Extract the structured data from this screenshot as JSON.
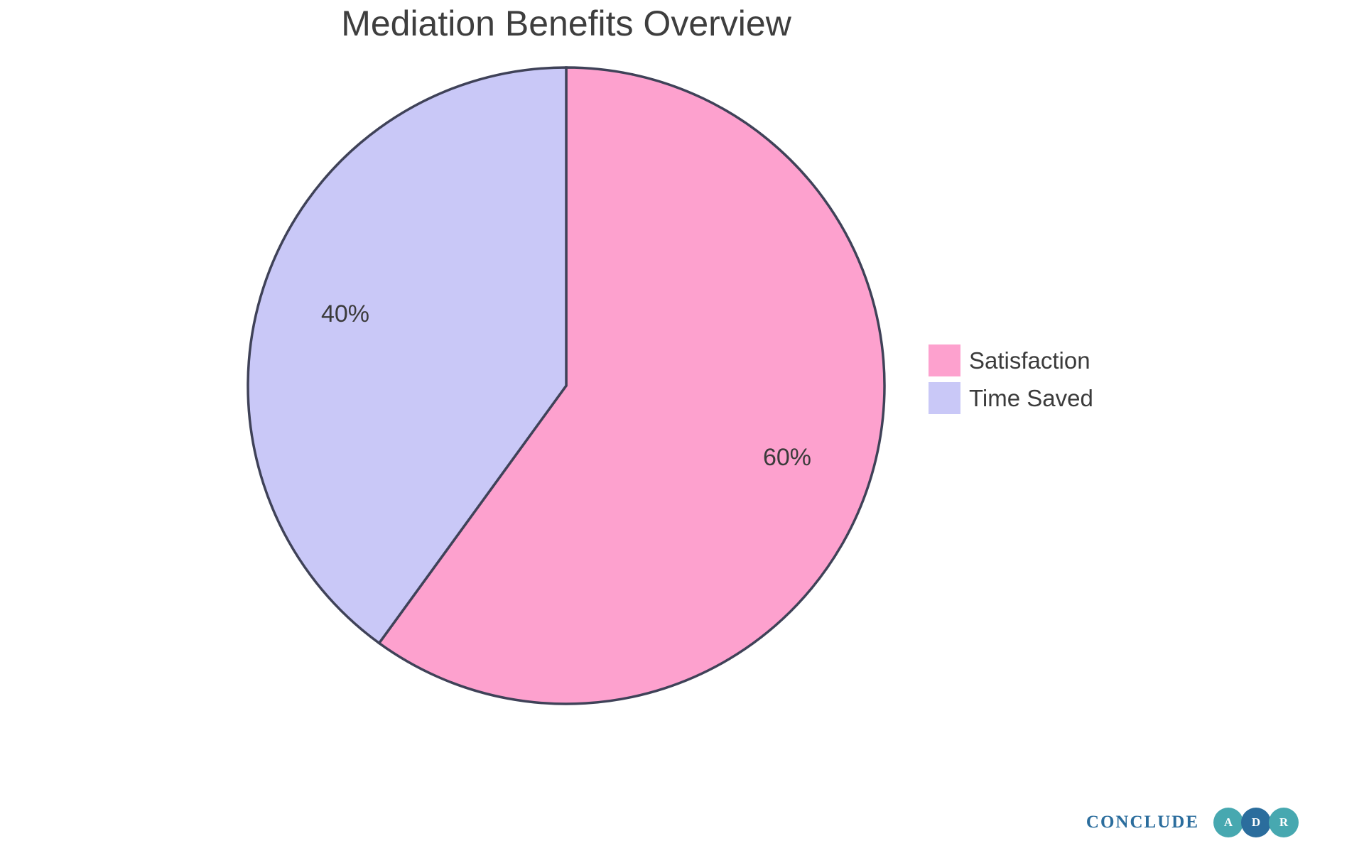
{
  "chart_data": {
    "type": "pie",
    "title": "Mediation Benefits Overview",
    "start_angle_deg": 0,
    "direction": "clockwise",
    "legend_position": "right",
    "grid": false,
    "slices": [
      {
        "label": "Satisfaction",
        "value": 60,
        "percent_label": "60%",
        "color": "#FDA1CE"
      },
      {
        "label": "Time Saved",
        "value": 40,
        "percent_label": "40%",
        "color": "#C9C8F7"
      }
    ],
    "slice_border_color": "#3F4258",
    "label_color": "#3B3B3B",
    "title_color": "#3E3E3E",
    "legend_text_color": "#3B3B3B",
    "background_color": "#FFFFFF"
  },
  "branding": {
    "name": "CONCLUDE",
    "name_color": "#2B6D9D",
    "letter_color": "#FFFFFF",
    "badges": [
      {
        "letter": "A",
        "color": "#47A8B0"
      },
      {
        "letter": "D",
        "color": "#2B6D9D"
      },
      {
        "letter": "R",
        "color": "#47A8B0"
      }
    ]
  }
}
